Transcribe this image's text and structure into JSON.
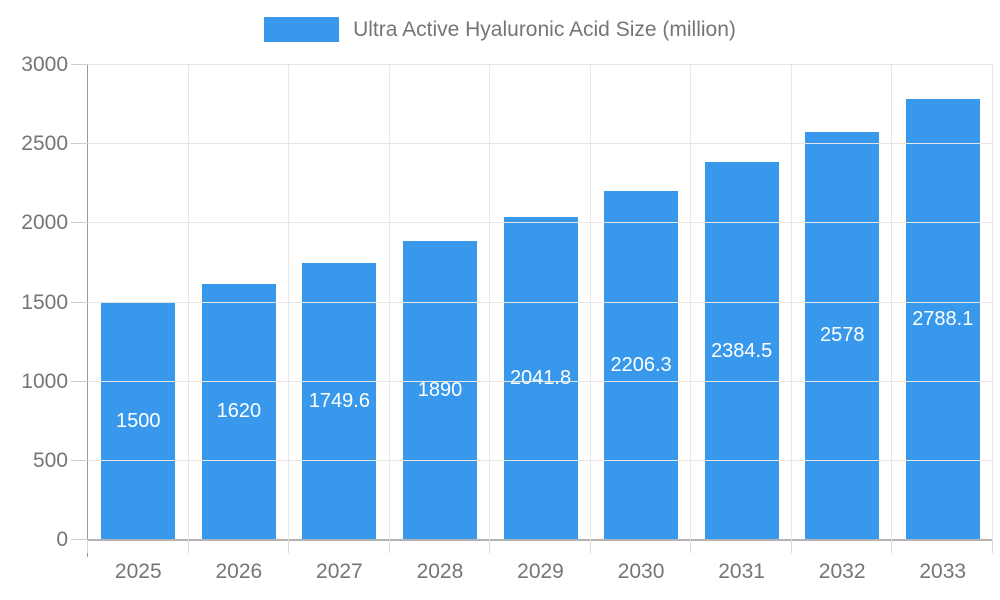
{
  "legend": {
    "label": "Ultra Active Hyaluronic Acid Size (million)"
  },
  "chart_data": {
    "type": "bar",
    "title": "Ultra Active Hyaluronic Acid Size (million)",
    "categories": [
      "2025",
      "2026",
      "2027",
      "2028",
      "2029",
      "2030",
      "2031",
      "2032",
      "2033"
    ],
    "values": [
      1500,
      1620,
      1749.6,
      1890,
      2041.8,
      2206.3,
      2384.5,
      2578,
      2788.1
    ],
    "value_labels": [
      "1500",
      "1620",
      "1749.6",
      "1890",
      "2041.8",
      "2206.3",
      "2384.5",
      "2578",
      "2788.1"
    ],
    "xlabel": "",
    "ylabel": "",
    "ylim": [
      0,
      3000
    ],
    "yticks": [
      0,
      500,
      1000,
      1500,
      2000,
      2500,
      3000
    ],
    "grid": true,
    "legend_position": "top",
    "colors": {
      "bar": "#3899ec",
      "bar_label": "#ffffff",
      "axis_text": "#757575",
      "gridline": "#e6e6e6",
      "axis_line": "#999999",
      "baseline": "#b3b3b3"
    }
  }
}
